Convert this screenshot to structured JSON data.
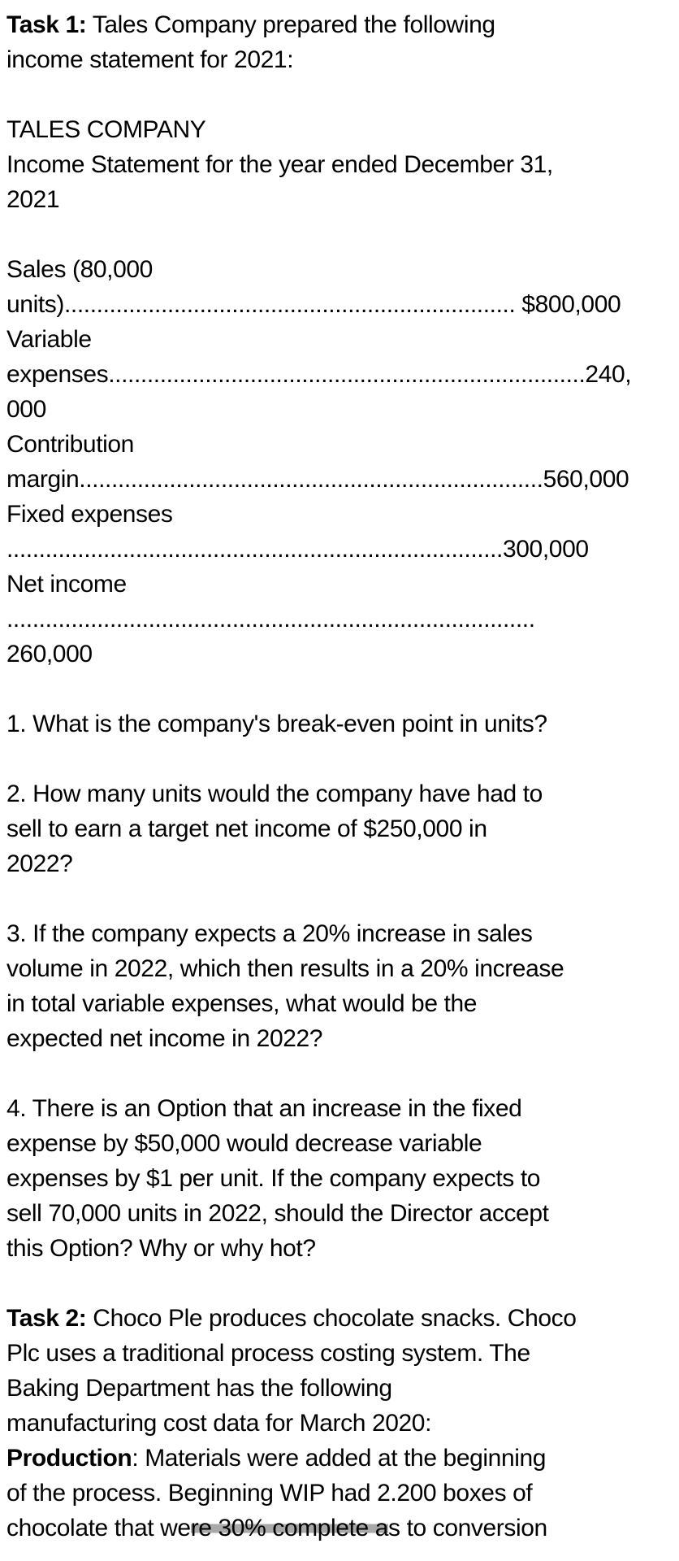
{
  "page": {
    "background": "#ffffff",
    "text_color": "#000000",
    "highlight_color": "#a8a8a8"
  },
  "income_statement_summary": {
    "company": "TALES COMPANY",
    "period": "Income Statement for the year ended December 31, 2021",
    "rows": [
      {
        "label": "Sales (80,000 units)",
        "value": "$800,000"
      },
      {
        "label": "Variable expenses",
        "value": "240,000"
      },
      {
        "label": "Contribution margin",
        "value": "560,000"
      },
      {
        "label": "Fixed expenses",
        "value": "300,000"
      },
      {
        "label": "Net income",
        "value": "260,000"
      }
    ]
  },
  "content": {
    "task1_intro": {
      "segments": [
        {
          "t": "Task 1:",
          "s": "b"
        },
        {
          "t": " Tales Company prepared the following\nincome statement for 2021:"
        }
      ]
    },
    "statement_title": {
      "segments": [
        {
          "t": "TALES COMPANY\nIncome Statement for the year ended December 31,\n2021"
        }
      ]
    },
    "income_statement": {
      "segments": [
        {
          "t": "Sales (80,000\nunits)...................................................................... $800,000\nVariable\nexpenses..........................................................................240,\n000\nContribution\nmargin........................................................................560,000\nFixed expenses\n.............................................................................300,000\nNet income\n..................................................................................\n260,000"
        }
      ]
    },
    "question_1": {
      "segments": [
        {
          "t": "1. What is the company's break-even point in units?"
        }
      ]
    },
    "question_2": {
      "segments": [
        {
          "t": "2. How many units would the company have had to\nsell to earn a target net income of $250,000 in\n2022?"
        }
      ]
    },
    "question_3": {
      "segments": [
        {
          "t": "3. If the company expects a 20% increase in sales\nvolume in 2022, which then results in a 20% increase\nin total variable expenses, what would be the\nexpected net income in 2022?"
        }
      ]
    },
    "question_4": {
      "segments": [
        {
          "t": " 4. There is an Option that an increase in the fixed\nexpense by $50,000 would decrease variable\nexpenses by $1 per unit. If the company expects to\nsell 70,000 units in 2022, should the Director accept\nthis Option? Why or why hot?"
        }
      ]
    },
    "task2_intro": {
      "segments": [
        {
          "t": "Task 2:",
          "s": "b"
        },
        {
          "t": " Choco Ple produces chocolate snacks. Choco\nPlc uses a traditional process costing system. The\nBaking Department has the following\nmanufacturing cost data for March 2020:\n"
        },
        {
          "t": "Production",
          "s": "b"
        },
        {
          "t": ": Materials were added at the beginning\nof the process. Beginning WIP had 2.200 boxes of\nchocolate that we"
        },
        {
          "t": "re 30% complete a",
          "s": "hl"
        },
        {
          "t": "s to conversion"
        }
      ]
    }
  }
}
